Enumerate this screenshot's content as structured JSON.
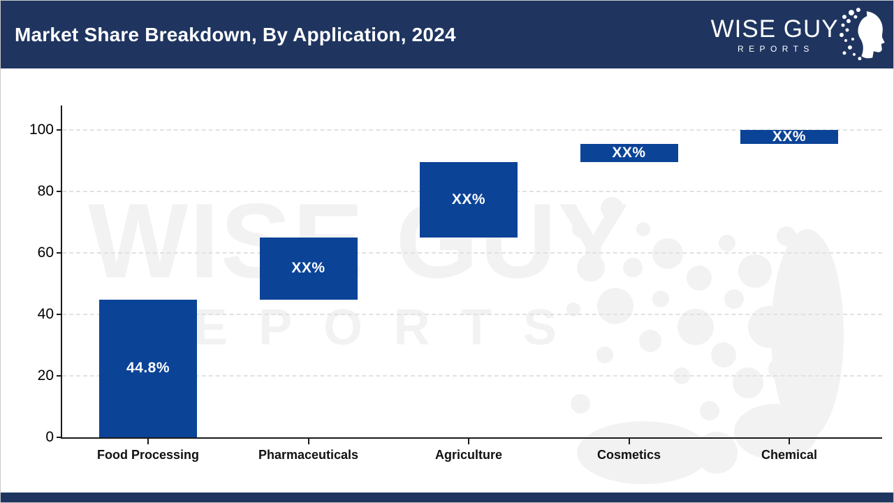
{
  "header": {
    "title": "Market Share Breakdown, By Application, 2024",
    "bg_color": "#1f3560",
    "logo": {
      "wordmark": "WISE GUY",
      "subtext": "REPORTS",
      "face_icon": "dotted-head-profile"
    }
  },
  "watermark": {
    "line1": "WISE GUY",
    "line2": "REPORTS",
    "color": "#f2f2f2"
  },
  "chart_data": {
    "type": "bar",
    "subtype": "waterfall",
    "title": "Market Share Breakdown, By Application, 2024",
    "categories": [
      "Food Processing",
      "Pharmaceuticals",
      "Agriculture",
      "Cosmetics",
      "Chemical"
    ],
    "bars": [
      {
        "category": "Food Processing",
        "start": 0,
        "end": 44.8,
        "label": "44.8%"
      },
      {
        "category": "Pharmaceuticals",
        "start": 44.8,
        "end": 65,
        "label": "XX%"
      },
      {
        "category": "Agriculture",
        "start": 65,
        "end": 89.5,
        "label": "XX%"
      },
      {
        "category": "Cosmetics",
        "start": 89.5,
        "end": 95.5,
        "label": "XX%"
      },
      {
        "category": "Chemical",
        "start": 95.5,
        "end": 100,
        "label": "XX%"
      }
    ],
    "ylim": [
      0,
      107
    ],
    "yticks": [
      0,
      20,
      40,
      60,
      80,
      100
    ],
    "grid": "horizontal-dashed",
    "legend": "none",
    "bar_color": "#0b4397",
    "bar_label_color": "#ffffff",
    "axis_color": "#1a1a1a",
    "gridline_color": "#e1e1e1"
  }
}
